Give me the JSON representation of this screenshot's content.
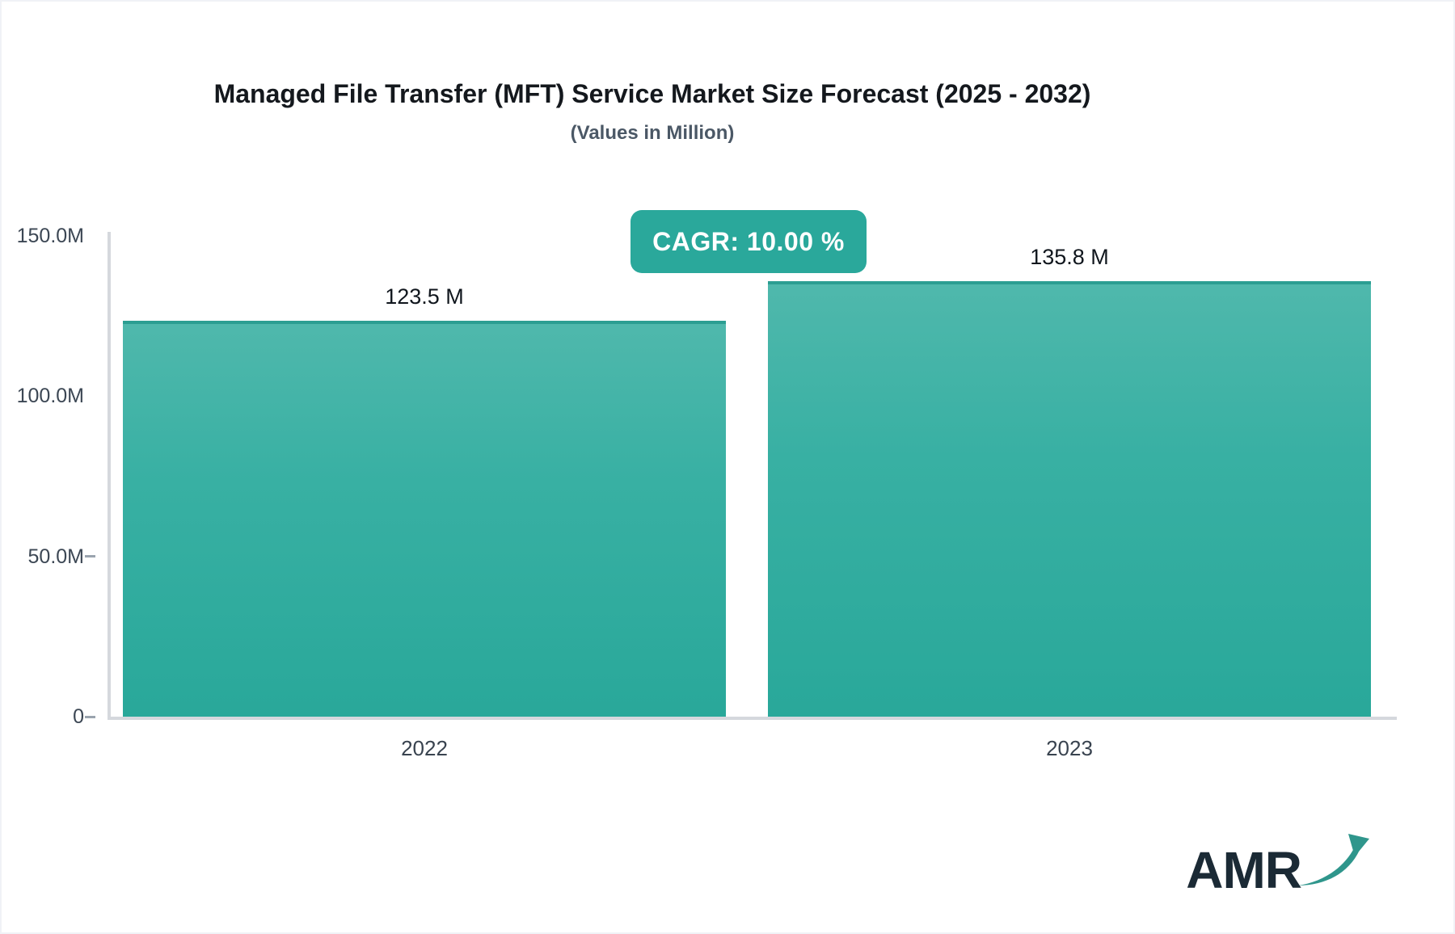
{
  "header": {
    "title": "Managed File Transfer (MFT) Service Market Size Forecast (2025 - 2032)",
    "subtitle": "(Values in Million)"
  },
  "badge": {
    "label": "CAGR: 10.00 %",
    "bg_color": "#2aa89b",
    "text_color": "#ffffff"
  },
  "chart_data": {
    "type": "bar",
    "title": "Managed File Transfer (MFT) Service Market Size Forecast (2025 - 2032)",
    "subtitle": "(Values in Million)",
    "annotation": "CAGR: 10.00 %",
    "categories": [
      "2022",
      "2023"
    ],
    "values": [
      123.5,
      135.8
    ],
    "value_labels": [
      "123.5 M",
      "135.8 M"
    ],
    "unit": "Million",
    "ylim": [
      0,
      150
    ],
    "yticks": [
      {
        "value": 0,
        "label": "0",
        "dash": true
      },
      {
        "value": 50,
        "label": "50.0M",
        "dash": true
      },
      {
        "value": 100,
        "label": "100.0M",
        "dash": false
      },
      {
        "value": 150,
        "label": "150.0M",
        "dash": false
      }
    ],
    "grid": false,
    "legend": "none",
    "bar_color_top": "#4fb8ac",
    "bar_color_bottom": "#29a89a",
    "bar_border_color": "#2b9e92",
    "axis_line_color": "#d5d8dd"
  },
  "logo": {
    "text": "AMR",
    "text_color": "#1b2a35",
    "arrow_color": "#2f968c"
  }
}
